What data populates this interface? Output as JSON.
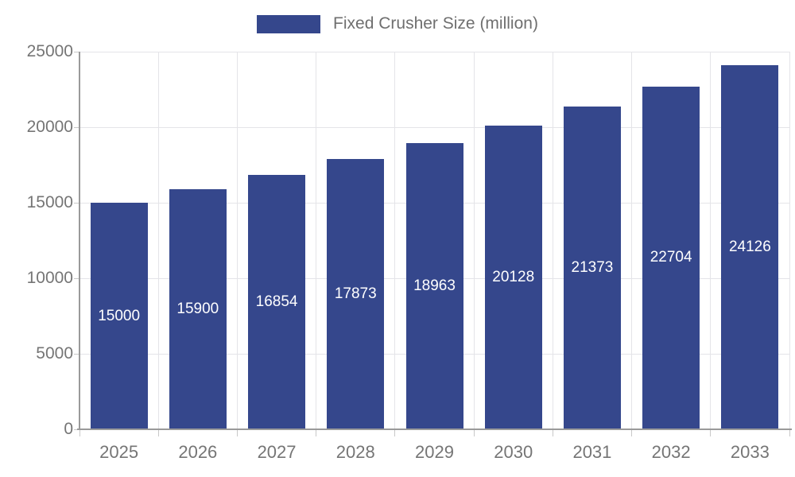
{
  "legend": {
    "label": "Fixed Crusher Size (million)"
  },
  "chart_data": {
    "type": "bar",
    "title": "",
    "categories": [
      "2025",
      "2026",
      "2027",
      "2028",
      "2029",
      "2030",
      "2031",
      "2032",
      "2033"
    ],
    "series": [
      {
        "name": "Fixed Crusher Size (million)",
        "values": [
          15000,
          15900,
          16854,
          17873,
          18963,
          20128,
          21373,
          22704,
          24126
        ]
      }
    ],
    "value_labels": [
      "15000",
      "15900",
      "16854",
      "17873",
      "18963",
      "20128",
      "21373",
      "22704",
      "24126"
    ],
    "xlabel": "",
    "ylabel": "",
    "ylim": [
      0,
      25000
    ],
    "yticks": [
      0,
      5000,
      10000,
      15000,
      20000,
      25000
    ],
    "grid": true,
    "legend_position": "top",
    "colors": {
      "bar": "#35478C",
      "value_label": "#ffffff",
      "axis": "#9a9a9a",
      "grid": "#e4e4e8",
      "tick": "#c8c8c8",
      "tick_label": "#757575"
    }
  }
}
